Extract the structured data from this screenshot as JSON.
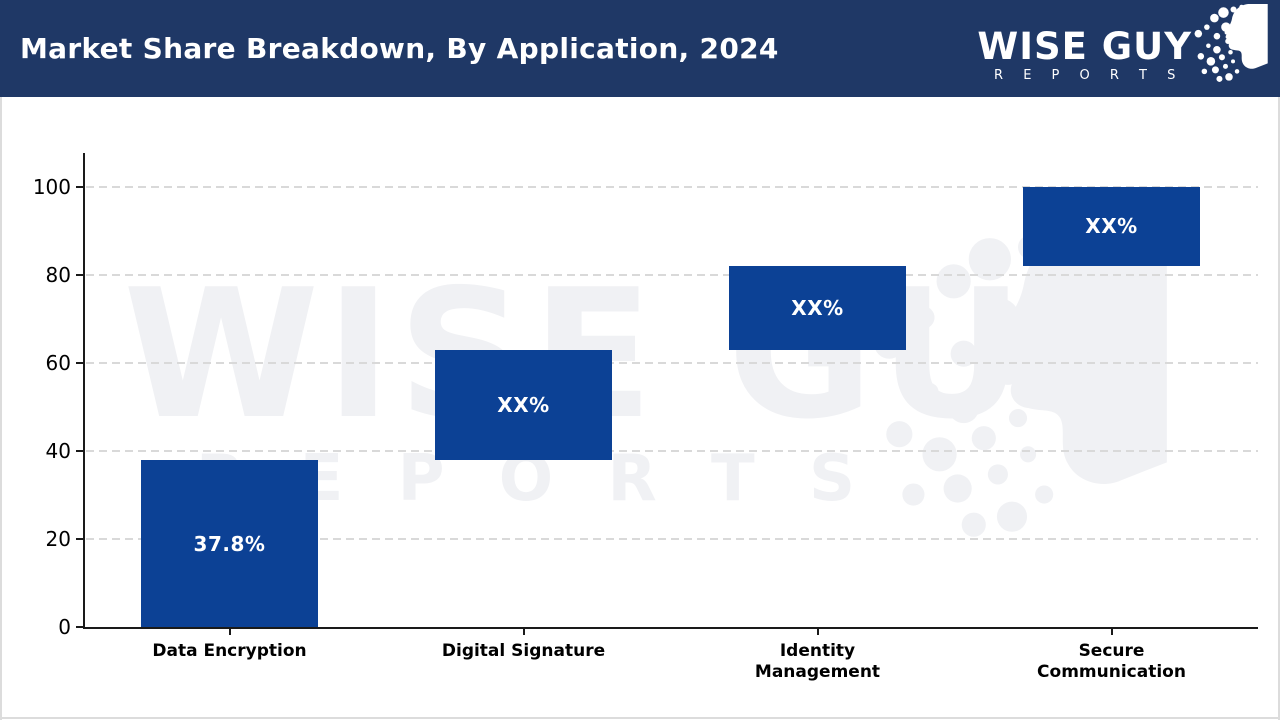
{
  "header": {
    "title": "Market Share Breakdown, By Application, 2024",
    "logo": {
      "wordmark": "WISE GUY",
      "subtitle": "R E P O R T S"
    }
  },
  "watermark": {
    "wordmark": "WISE GUY",
    "subtitle": "R E P O R T S"
  },
  "colors": {
    "header_bg": "#1f3866",
    "bar": "#0c4195",
    "bar_label": "#ffffff",
    "watermark": "#f0f1f4",
    "gridline": "#d9d9d9",
    "axis": "#1a1a1a",
    "tick_label": "#000000"
  },
  "chart_data": {
    "type": "waterfall",
    "title": "Market Share Breakdown, By Application, 2024",
    "categories": [
      "Data Encryption",
      "Digital Signature",
      "Identity Management",
      "Secure Communication"
    ],
    "segments": [
      {
        "category": "Data Encryption",
        "label_lines": [
          "Data Encryption"
        ],
        "start": 0,
        "end": 37.8,
        "value": 37.8,
        "label": "37.8%"
      },
      {
        "category": "Digital Signature",
        "label_lines": [
          "Digital Signature"
        ],
        "start": 37.8,
        "end": 62.8,
        "value": 25.0,
        "label": "XX%"
      },
      {
        "category": "Identity Management",
        "label_lines": [
          "Identity",
          "Management"
        ],
        "start": 62.8,
        "end": 81.9,
        "value": 19.1,
        "label": "XX%"
      },
      {
        "category": "Secure Communication",
        "label_lines": [
          "Secure",
          "Communication"
        ],
        "start": 81.9,
        "end": 100,
        "value": 18.1,
        "label": "XX%"
      }
    ],
    "y_axis": {
      "ticks": [
        0,
        20,
        40,
        60,
        80,
        100
      ],
      "range": [
        0,
        105
      ]
    },
    "x_axis": {
      "label": ""
    },
    "grid": {
      "horizontal": "dashed",
      "vertical": "none"
    },
    "legend": "none",
    "bar_color": "#0c4195"
  }
}
